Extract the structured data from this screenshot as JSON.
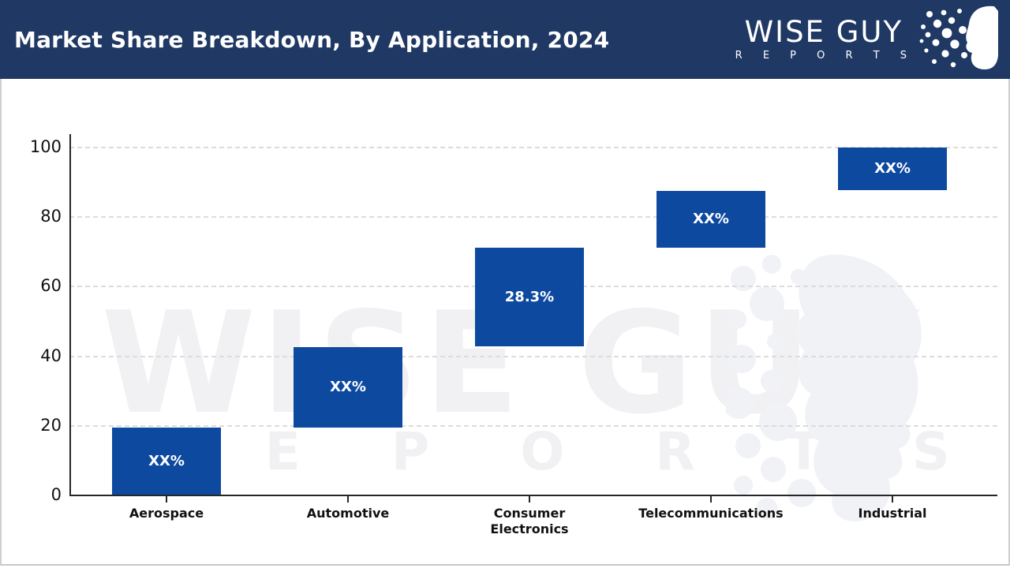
{
  "header": {
    "title": "Market Share Breakdown, By Application, 2024",
    "bg_color": "#1f3864",
    "logo": {
      "name": "WISE GUY",
      "tagline": "R E P O R T S"
    }
  },
  "watermark": {
    "line1": "WISE GUY",
    "line2": "R E P O R T S"
  },
  "chart_data": {
    "type": "bar",
    "variant": "floating-waterfall",
    "title": "Market Share Breakdown, By Application, 2024",
    "categories": [
      "Aerospace",
      "Automotive",
      "Consumer\nElectronics",
      "Telecommunications",
      "Industrial"
    ],
    "segments": [
      {
        "category": "Aerospace",
        "start": 0.0,
        "end": 19.3,
        "label": "XX%"
      },
      {
        "category": "Automotive",
        "start": 19.3,
        "end": 42.4,
        "label": "XX%"
      },
      {
        "category": "Consumer Electronics",
        "start": 42.6,
        "end": 70.9,
        "label": "28.3%"
      },
      {
        "category": "Telecommunications",
        "start": 71.0,
        "end": 87.3,
        "label": "XX%"
      },
      {
        "category": "Industrial",
        "start": 87.5,
        "end": 99.8,
        "label": "XX%"
      }
    ],
    "ylim": [
      0,
      100
    ],
    "yticks": [
      0,
      20,
      40,
      60,
      80,
      100
    ],
    "xlabel": "",
    "ylabel": "",
    "legend": "none",
    "grid": "dashed-horizontal",
    "bar_color": "#0d4a9f",
    "bar_label_color": "#ffffff",
    "axis_color": "#262626",
    "gridline_color": "#dcdcdc",
    "header_color": "#1f3864"
  }
}
